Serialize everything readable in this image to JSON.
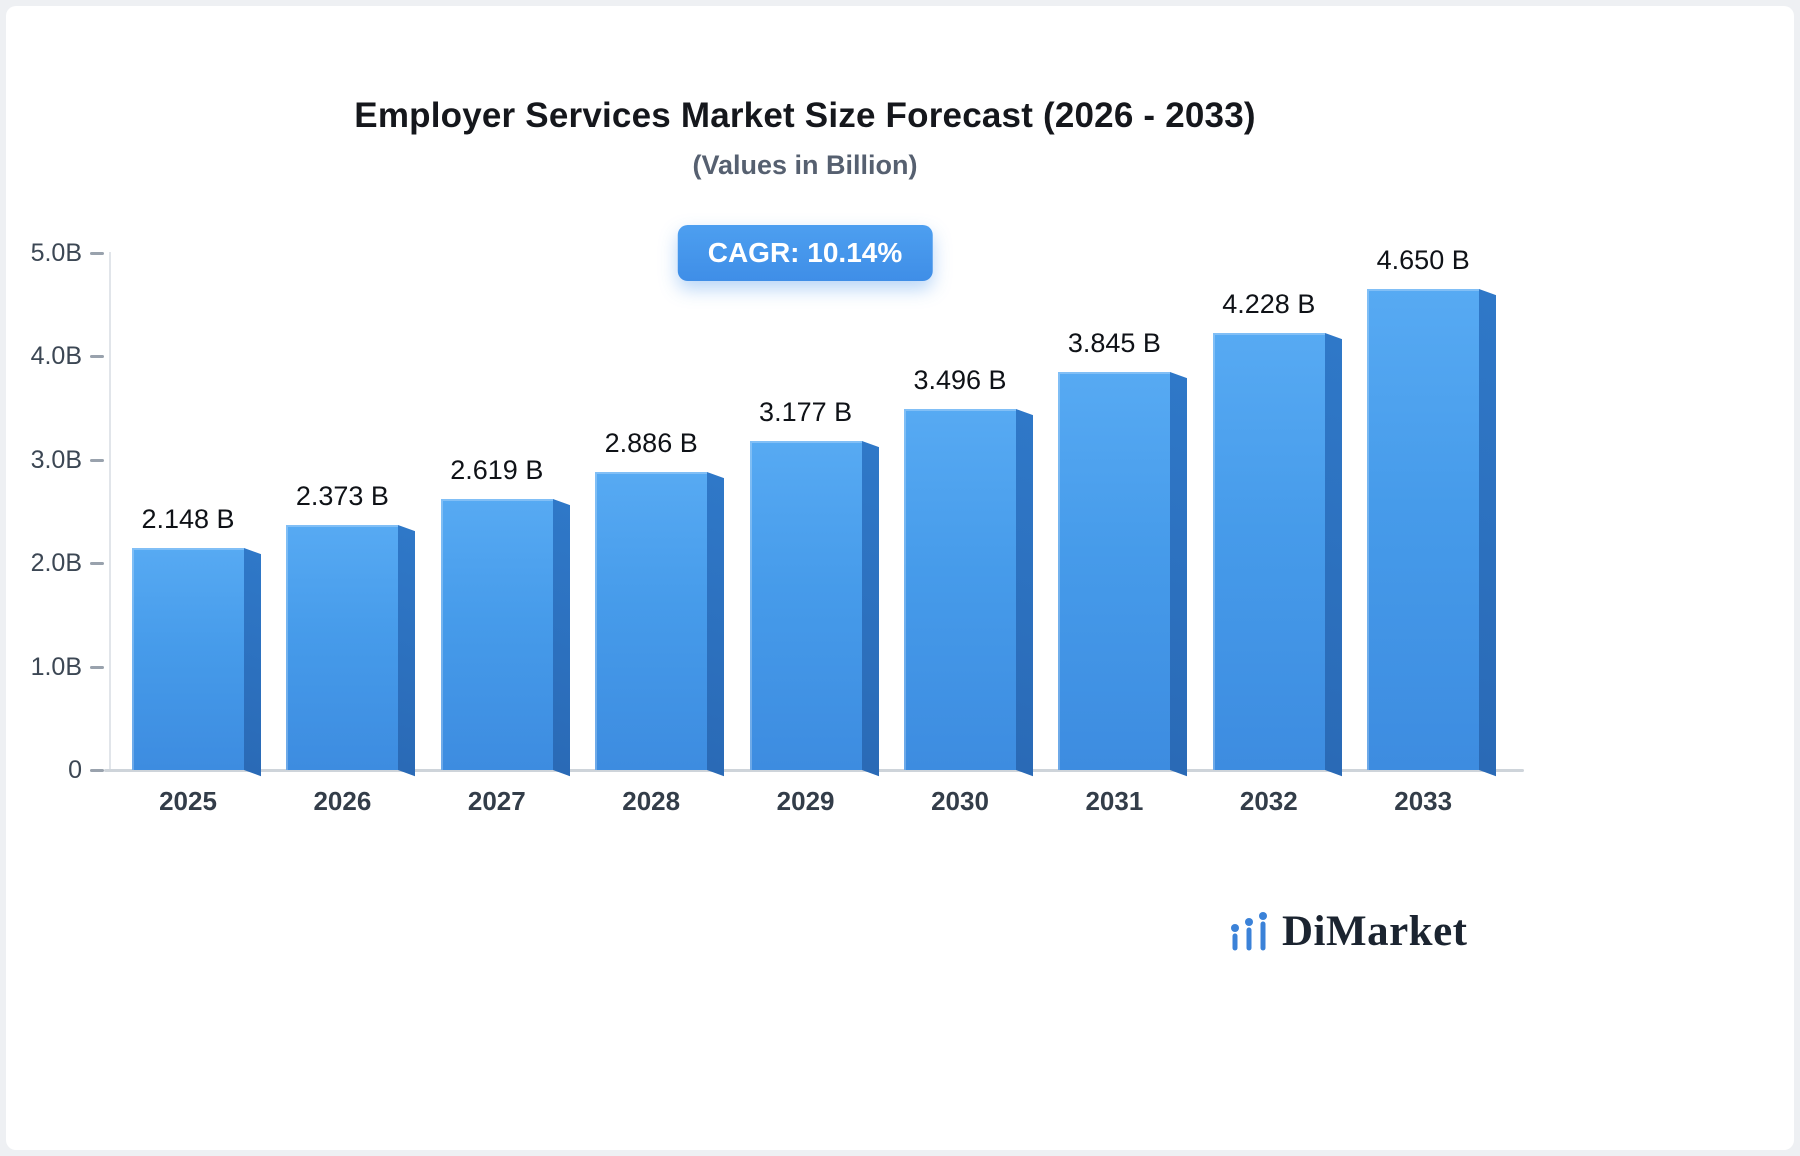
{
  "header": {
    "title": "Employer Services Market Size Forecast (2026 - 2033)",
    "subtitle": "(Values in Billion)"
  },
  "badge": {
    "label": "CAGR: 10.14%"
  },
  "logo": {
    "text": "DiMarket"
  },
  "chart_data": {
    "type": "bar",
    "title": "Employer Services Market Size Forecast (2026 - 2033)",
    "subtitle": "(Values in Billion)",
    "cagr": "10.14%",
    "categories": [
      "2025",
      "2026",
      "2027",
      "2028",
      "2029",
      "2030",
      "2031",
      "2032",
      "2033"
    ],
    "values": [
      2.148,
      2.373,
      2.619,
      2.886,
      3.177,
      3.496,
      3.845,
      4.228,
      4.65
    ],
    "value_labels": [
      "2.148 B",
      "2.373 B",
      "2.619 B",
      "2.886 B",
      "3.177 B",
      "3.496 B",
      "3.845 B",
      "4.228 B",
      "4.650 B"
    ],
    "xlabel": "",
    "ylabel": "",
    "ylim": [
      0,
      5
    ],
    "yticks": [
      {
        "value": 0,
        "label": "0"
      },
      {
        "value": 1,
        "label": "1.0B"
      },
      {
        "value": 2,
        "label": "2.0B"
      },
      {
        "value": 3,
        "label": "3.0B"
      },
      {
        "value": 4,
        "label": "4.0B"
      },
      {
        "value": 5,
        "label": "5.0B"
      }
    ],
    "grid": false,
    "legend": "none",
    "colors": {
      "bar_top": "#57aaf3",
      "bar_bottom": "#3d8ce0",
      "bar_side": "#2c6fbe",
      "badge_bg": "#4697ec",
      "axis": "#ced4da",
      "text_dark": "#15171c",
      "text_muted": "#566070"
    }
  }
}
